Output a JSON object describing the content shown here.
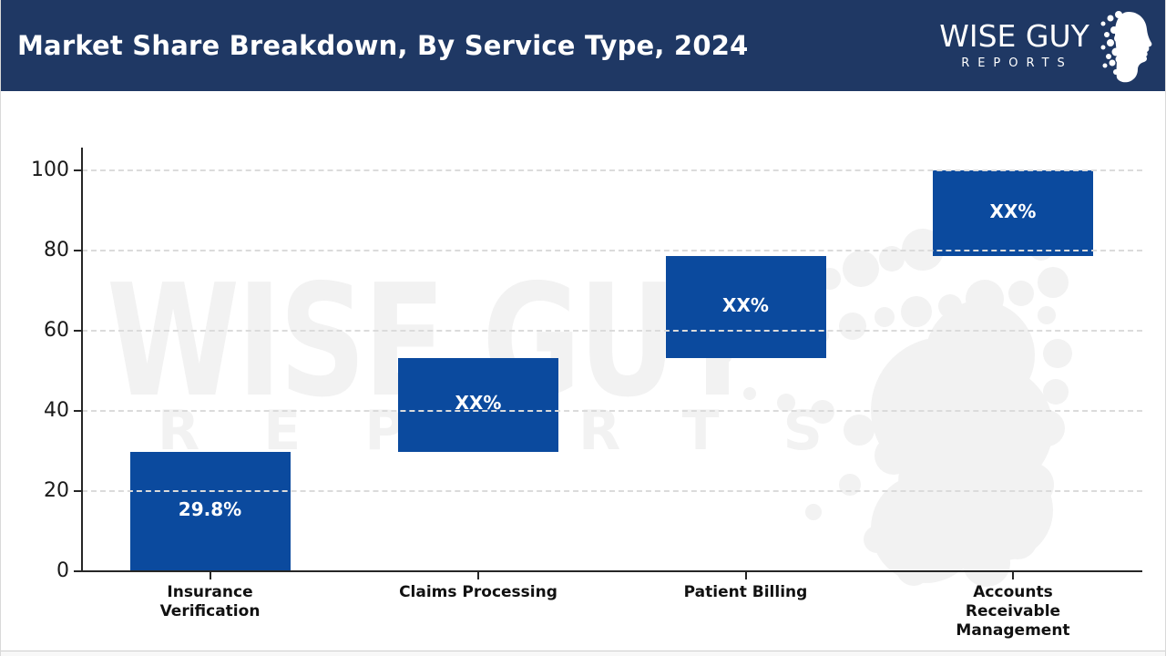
{
  "header": {
    "title": "Market Share Breakdown, By Service Type, 2024",
    "logo": {
      "name": "WISE GUY",
      "sub": "REPORTS"
    }
  },
  "watermark": {
    "line1": "WISE GUY",
    "line2": "REPORTS"
  },
  "colors": {
    "header_bg": "#1f3864",
    "bar": "#0b4a9e",
    "grid": "#dbdbdb",
    "axis": "#262626",
    "title_text": "#ffffff",
    "watermark": "#f2f2f2"
  },
  "chart_data": {
    "type": "bar",
    "variant": "waterfall",
    "title": "Market Share Breakdown, By Service Type, 2024",
    "categories": [
      "Insurance Verification",
      "Claims Processing",
      "Patient Billing",
      "Accounts Receivable Management"
    ],
    "category_lines": [
      [
        "Insurance",
        "Verification"
      ],
      [
        "Claims Processing"
      ],
      [
        "Patient Billing"
      ],
      [
        "Accounts",
        "Receivable",
        "Management"
      ]
    ],
    "segments": [
      {
        "category": "Insurance Verification",
        "start": 0,
        "end": 29.8,
        "value": 29.8,
        "label": "29.8%"
      },
      {
        "category": "Claims Processing",
        "start": 29.8,
        "end": 53.2,
        "value": 23.4,
        "label": "XX%"
      },
      {
        "category": "Patient Billing",
        "start": 53.2,
        "end": 78.7,
        "value": 25.5,
        "label": "XX%"
      },
      {
        "category": "Accounts Receivable Management",
        "start": 78.7,
        "end": 100,
        "value": 21.3,
        "label": "XX%"
      }
    ],
    "xlabel": "",
    "ylabel": "",
    "yticks": [
      0,
      20,
      40,
      60,
      80,
      100
    ],
    "ylim": [
      0,
      100
    ],
    "grid": "horizontal-dashed",
    "legend": "none",
    "bar_color": "#0b4a9e"
  }
}
